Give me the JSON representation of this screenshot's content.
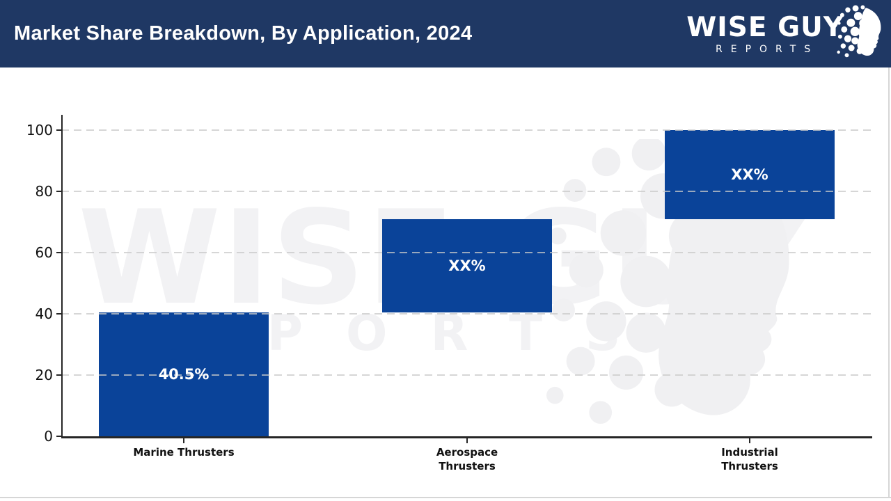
{
  "header": {
    "title": "Market Share Breakdown, By Application, 2024",
    "background_color": "#1f3864",
    "logo": {
      "line1": "WISE GUY",
      "line2": "REPORTS"
    }
  },
  "watermark": {
    "line1": "WISE GUY",
    "line2": "REPORTS",
    "color": "#f2f2f4"
  },
  "chart_data": {
    "type": "bar",
    "style": "waterfall-stacked floating bars, one segment per category",
    "title": "Market Share Breakdown, By Application, 2024",
    "categories": [
      "Marine Thrusters",
      "Aerospace Thrusters",
      "Industrial Thrusters"
    ],
    "categories_lines": [
      [
        "Marine Thrusters"
      ],
      [
        "Aerospace",
        "Thrusters"
      ],
      [
        "Industrial",
        "Thrusters"
      ]
    ],
    "segments": [
      {
        "category": "Marine Thrusters",
        "start": 0,
        "end": 40.5,
        "label": "40.5%"
      },
      {
        "category": "Aerospace Thrusters",
        "start": 40.5,
        "end": 71,
        "label": "XX%"
      },
      {
        "category": "Industrial Thrusters",
        "start": 71,
        "end": 100,
        "label": "XX%"
      }
    ],
    "yticks": [
      0,
      20,
      40,
      60,
      80,
      100
    ],
    "ylim": [
      0,
      105
    ],
    "xlabel": "",
    "ylabel": "",
    "legend": "none",
    "grid": "horizontal dashed gridlines drawn over bars",
    "bar_color": "#0a4399",
    "value_label_color": "#ffffff",
    "axis_color": "#262626",
    "gridline_color": "#c9c9c9"
  }
}
